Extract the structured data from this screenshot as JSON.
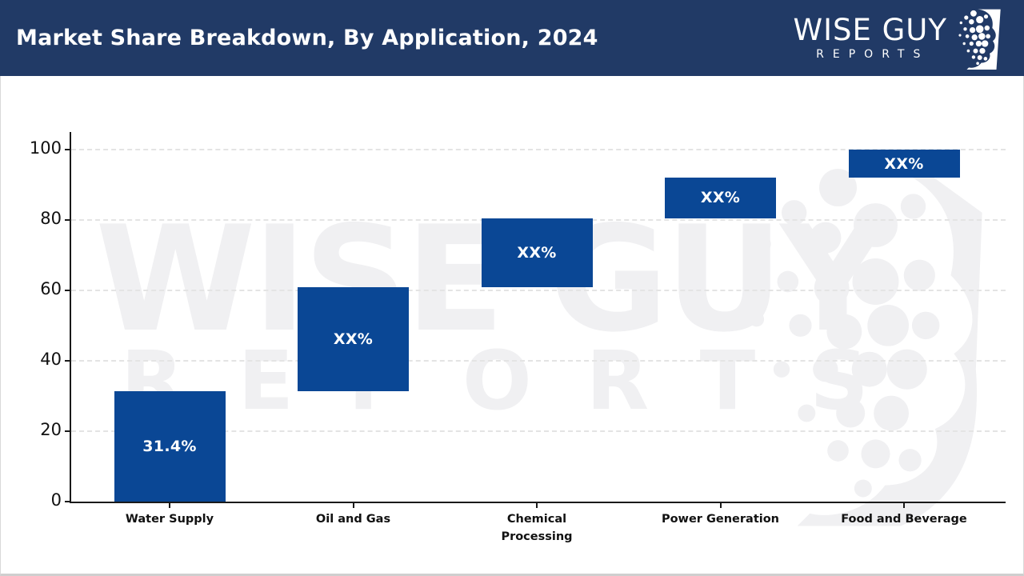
{
  "header": {
    "title": "Market Share Breakdown, By Application, 2024",
    "logo": {
      "name": "WISE GUY",
      "sub": "REPORTS"
    }
  },
  "watermark": {
    "line1": "WISE GUY",
    "line2": "REPORTS"
  },
  "chart_data": {
    "type": "bar",
    "subtype": "waterfall",
    "title": "Market Share Breakdown, By Application, 2024",
    "categories": [
      "Water Supply",
      "Oil and Gas",
      "Chemical Processing",
      "Power Generation",
      "Food and Beverage"
    ],
    "category_label_lines": [
      [
        "Water Supply"
      ],
      [
        "Oil and Gas"
      ],
      [
        "Chemical",
        "Processing"
      ],
      [
        "Power Generation"
      ],
      [
        "Food and Beverage"
      ]
    ],
    "series": [
      {
        "name": "Market Share",
        "starts": [
          0,
          31.4,
          61.0,
          80.5,
          92.0
        ],
        "ends": [
          31.4,
          61.0,
          80.5,
          92.0,
          100.0
        ]
      }
    ],
    "values": [
      31.4,
      29.6,
      19.5,
      11.5,
      8.0
    ],
    "bar_labels": [
      "31.4%",
      "XX%",
      "XX%",
      "XX%",
      "XX%"
    ],
    "xlabel": "",
    "ylabel": "",
    "y_ticks": [
      0,
      20,
      40,
      60,
      80,
      100
    ],
    "ylim": [
      0,
      105
    ],
    "legend": "none",
    "grid": "horizontal-dashed",
    "colors": {
      "bar": "#0A4795",
      "bar_label_text": "#FFFFFF",
      "axis": "#1A1A1A",
      "gridline": "#E4E4E4",
      "tick_text": "#111111"
    }
  },
  "colors": {
    "header_bg": "#213A66",
    "header_text": "#FFFFFF",
    "canvas_bg": "#FFFFFF",
    "border": "#D9D9D9",
    "watermark": "#F0F0F2"
  }
}
